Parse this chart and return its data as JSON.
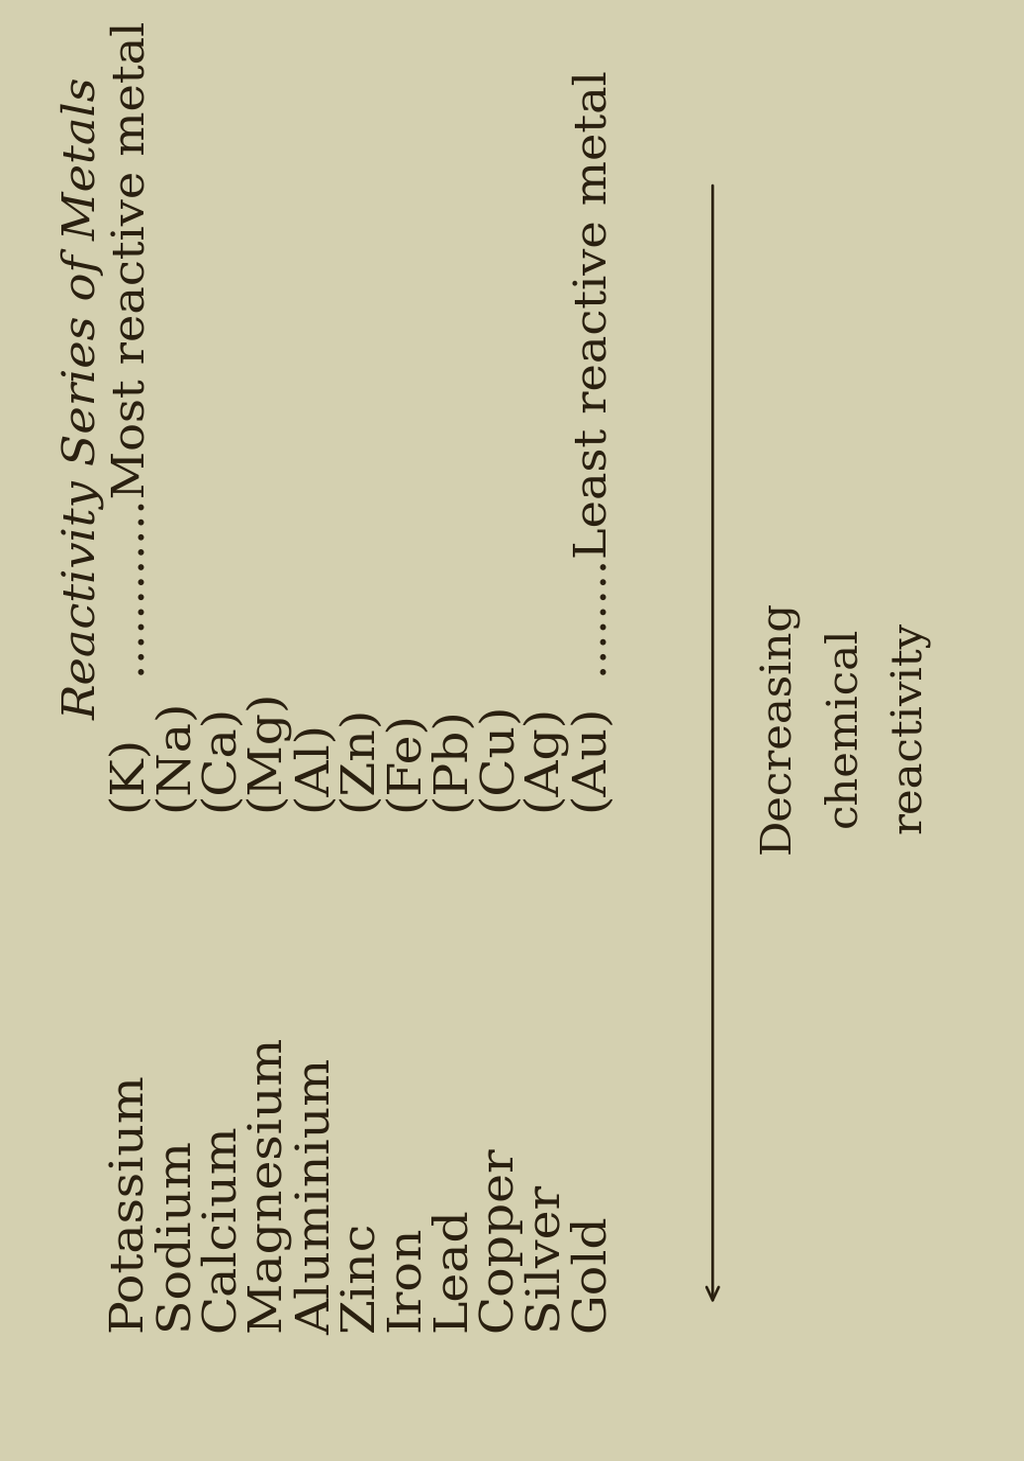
{
  "title": "Reactivity Series of Metals",
  "background_color": "#ccc9a8",
  "paper_color": "#d4d0b0",
  "outer_bg": "#9a9b8e",
  "text_color": "#2a2010",
  "metals": [
    {
      "name": "Potassium",
      "symbol": "(K)"
    },
    {
      "name": "Sodium",
      "symbol": "(Na)"
    },
    {
      "name": "Calcium",
      "symbol": "(Ca)"
    },
    {
      "name": "Magnesium",
      "symbol": "(Mg)"
    },
    {
      "name": "Aluminium",
      "symbol": "(Al)"
    },
    {
      "name": "Zinc",
      "symbol": "(Zn)"
    },
    {
      "name": "Iron",
      "symbol": "(Fe)"
    },
    {
      "name": "Lead",
      "symbol": "(Pb)"
    },
    {
      "name": "Copper",
      "symbol": "(Cu)"
    },
    {
      "name": "Silver",
      "symbol": "(Ag)"
    },
    {
      "name": "Gold",
      "symbol": "(Au)"
    }
  ],
  "most_reactive_label": "Most reactive metal",
  "least_reactive_label": "Least reactive metal",
  "dots_first": "............",
  "dots_last": "........",
  "decreasing_line1": "Decreasing",
  "decreasing_line2": "chemical",
  "decreasing_line3": "reactivity",
  "title_fontsize": 32,
  "metal_name_fontsize": 34,
  "metal_symbol_fontsize": 34,
  "label_fontsize": 28,
  "arrow_label_fontsize": 30
}
